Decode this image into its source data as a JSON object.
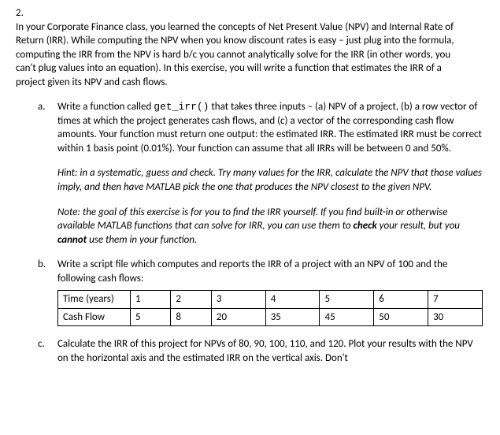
{
  "question": {
    "number": "2.",
    "intro": "In your Corporate Finance class, you learned the concepts of Net Present Value (NPV) and Internal Rate of Return (IRR). While computing the NPV when you know discount rates is easy – just plug into the formula, computing the IRR from the NPV is hard b/c you cannot analytically solve for the IRR (in other words, you can't plug values into an equation). In this exercise, you will write a function that estimates the IRR of a project given its NPV and cash flows."
  },
  "partA": {
    "label": "a.",
    "text1_pre": "Write a function called ",
    "code": "get_irr()",
    "text1_post": " that takes three inputs – (a) NPV of a project, (b) a row vector of times at which the project generates cash flows, and (c) a vector of the corresponding cash flow amounts. Your function must return one output: the estimated IRR. The estimated IRR must be correct within 1 basis point (0.01%). Your function can assume that all IRRs will be between 0 and 50%.",
    "hint": "Hint: in a systematic, guess and check. Try many values for the IRR, calculate the NPV that those values imply, and then have MATLAB pick the one that produces the NPV closest to the given NPV.",
    "note_pre": "Note: the goal of this exercise is for you to find the IRR yourself. If you find built-in or otherwise available MATLAB functions that can solve for IRR, you can use them to ",
    "note_bold1": "check",
    "note_mid": " your result, but you ",
    "note_bold2": "cannot",
    "note_post": " use them in your function."
  },
  "partB": {
    "label": "b.",
    "text": "Write a script file which computes and reports the IRR of a project with an NPV of 100 and the following cash flows:",
    "table": {
      "row1_label": "Time (years)",
      "row1": [
        "1",
        "2",
        "3",
        "4",
        "5",
        "6",
        "7"
      ],
      "row2_label": "Cash Flow",
      "row2": [
        "5",
        "8",
        "20",
        "35",
        "45",
        "50",
        "30"
      ]
    }
  },
  "partC": {
    "label": "c.",
    "text": "Calculate the IRR of this project for NPVs of 80, 90, 100, 110, and 120. Plot your results with the NPV on the horizontal axis and the estimated IRR on the vertical axis. Don't"
  }
}
